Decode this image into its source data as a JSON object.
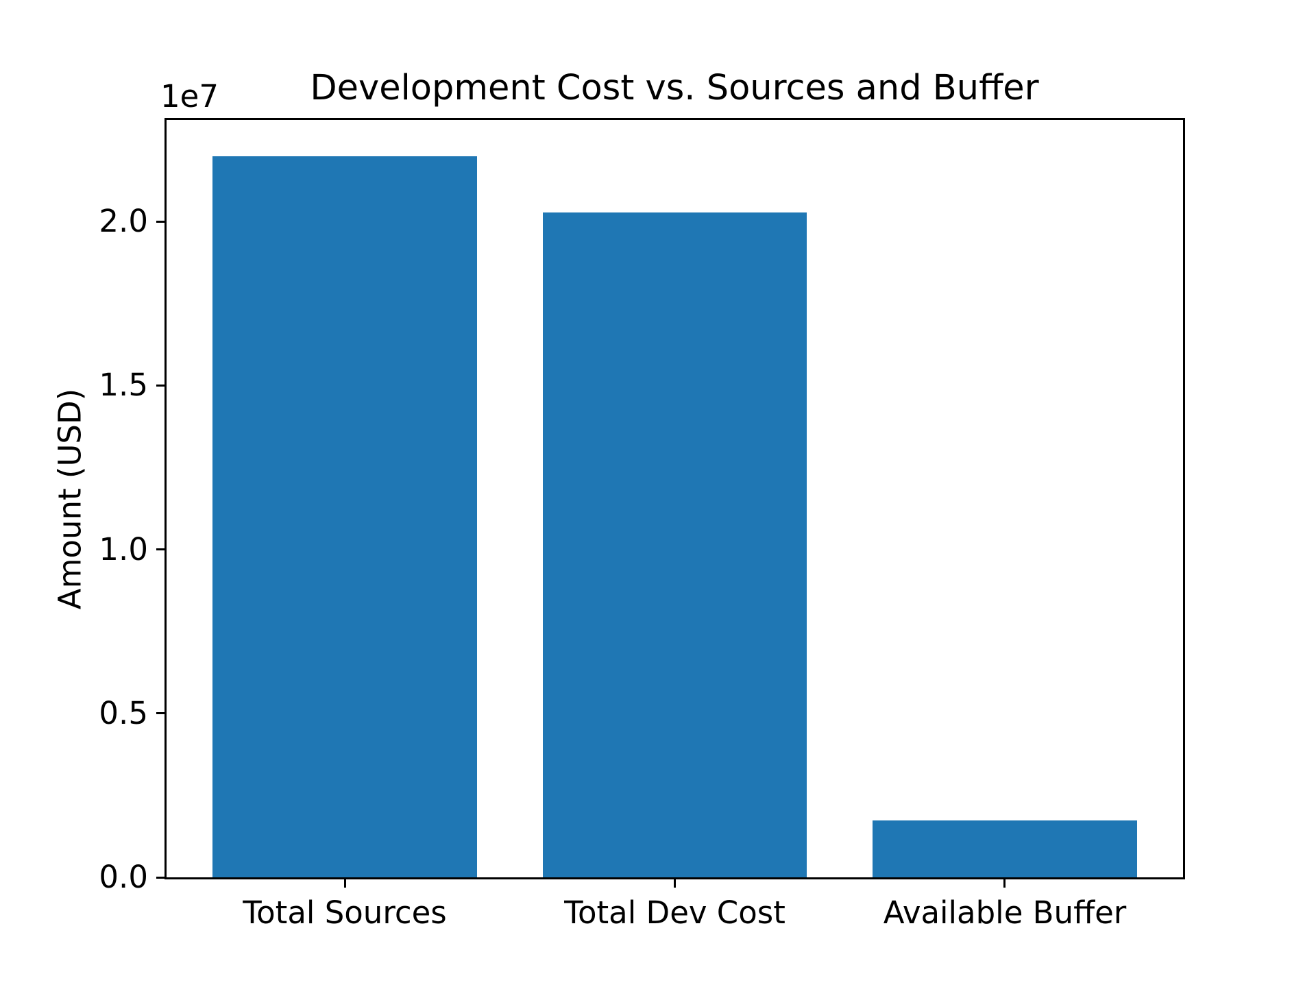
{
  "chart_data": {
    "type": "bar",
    "title": "Development Cost vs. Sources and Buffer",
    "xlabel": "",
    "ylabel": "Amount (USD)",
    "offset_text": "1e7",
    "categories": [
      "Total Sources",
      "Total Dev Cost",
      "Available Buffer"
    ],
    "values": [
      22000000,
      20270000,
      1730000
    ],
    "bar_color": "#1f77b4",
    "ytick_values": [
      0,
      5000000,
      10000000,
      15000000,
      20000000
    ],
    "ytick_labels": [
      "0.0",
      "0.5",
      "1.0",
      "1.5",
      "2.0"
    ],
    "ylim": [
      0,
      23100000
    ],
    "xlim": [
      -0.54,
      2.54
    ],
    "bar_width_data": 0.8,
    "grid": false,
    "legend": "none",
    "text_color": "#000000",
    "background_color": "#ffffff"
  }
}
